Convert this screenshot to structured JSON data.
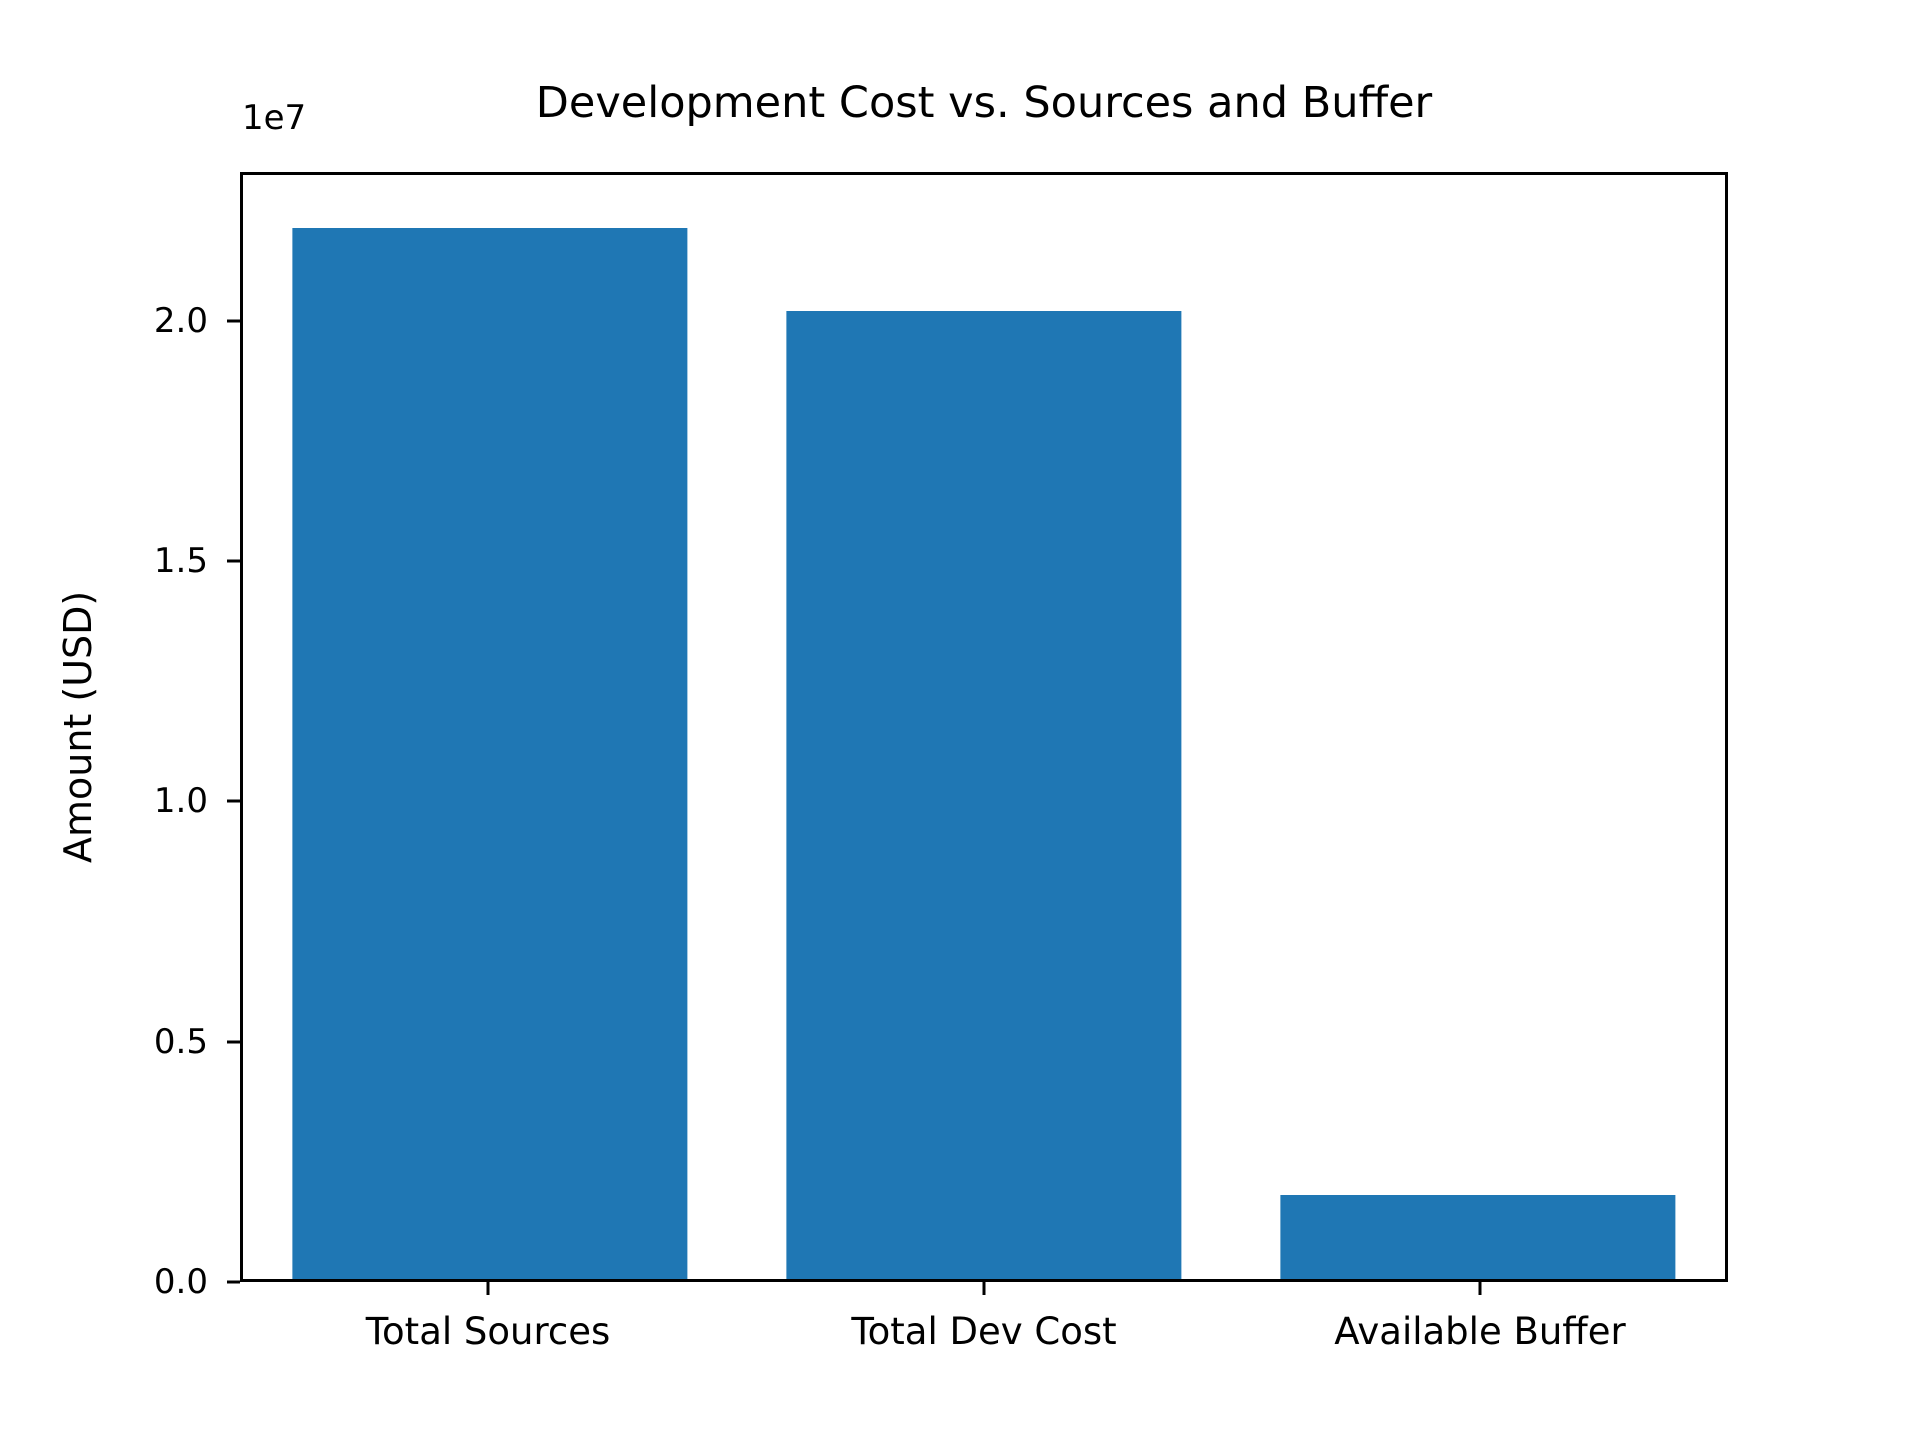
{
  "chart_data": {
    "type": "bar",
    "title": "Development Cost vs. Sources and Buffer",
    "xlabel": "",
    "ylabel": "Amount (USD)",
    "offset_text": "1e7",
    "categories": [
      "Total Sources",
      "Total Dev Cost",
      "Available Buffer"
    ],
    "values": [
      22000000,
      20250000,
      1750000
    ],
    "ylim": [
      0,
      23100000
    ],
    "yticks": [
      0,
      5000000,
      10000000,
      15000000,
      20000000
    ],
    "ytick_labels": [
      "0.0",
      "0.5",
      "1.0",
      "1.5",
      "2.0"
    ],
    "bar_color": "#1f77b4",
    "grid": false,
    "legend": null
  }
}
